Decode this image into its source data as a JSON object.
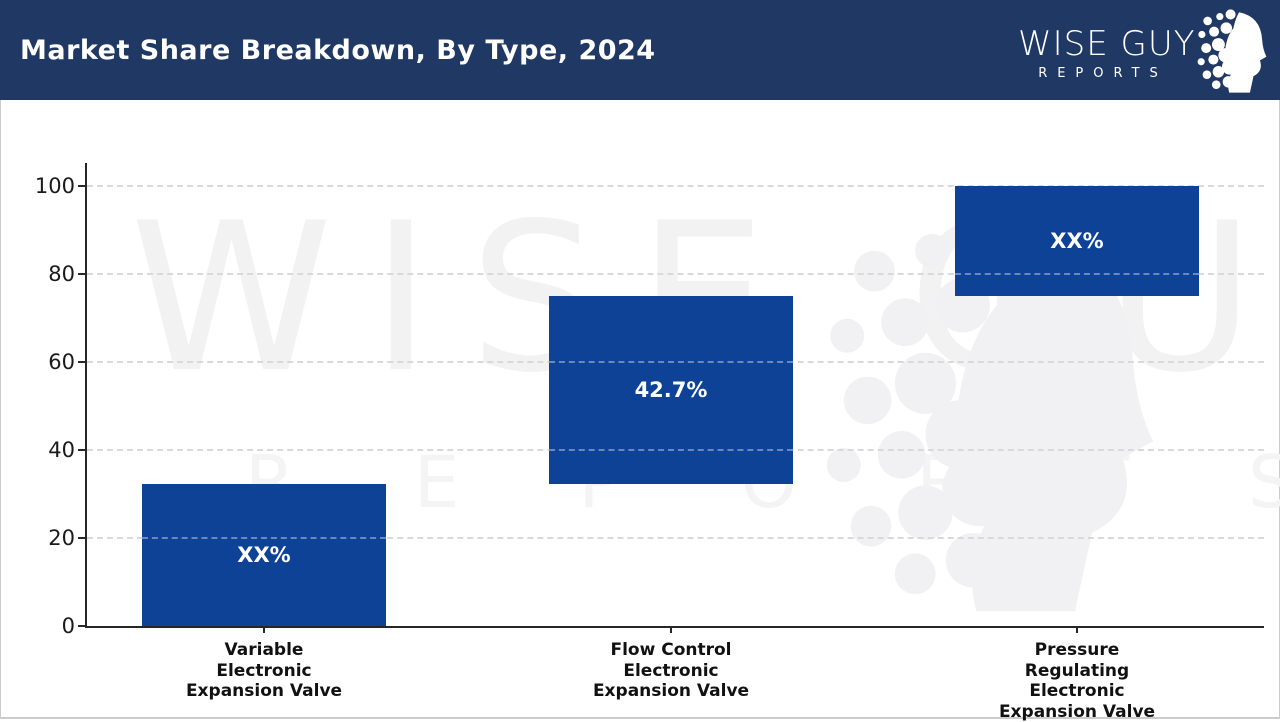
{
  "header": {
    "title": "Market Share Breakdown, By Type, 2024",
    "bg_color": "#203864",
    "brand": {
      "line1": "WISE GUY",
      "line2": "REPORTS"
    }
  },
  "watermark": {
    "line1": "WISE GUY",
    "line2": "R E P O R T S"
  },
  "chart_data": {
    "type": "bar",
    "subtype": "waterfall",
    "title": "Market Share Breakdown, By Type, 2024",
    "categories": [
      [
        "Variable",
        "Electronic",
        "Expansion Valve"
      ],
      [
        "Flow Control",
        "Electronic",
        "Expansion Valve"
      ],
      [
        "Pressure",
        "Regulating",
        "Electronic",
        "Expansion Valve"
      ]
    ],
    "segments": [
      {
        "start": 0,
        "end": 32.3,
        "label": "XX%"
      },
      {
        "start": 32.3,
        "end": 75.0,
        "label": "42.7%"
      },
      {
        "start": 75.0,
        "end": 100,
        "label": "XX%"
      }
    ],
    "ylim": [
      0,
      100
    ],
    "yticks": [
      0,
      20,
      40,
      60,
      80,
      100
    ],
    "grid": "horizontal-dashed",
    "legend": "none",
    "bar_color": "#0d4296",
    "bar_label_color": "#ffffff",
    "axis_color": "#262626",
    "grid_color": "#d9d9d9"
  }
}
